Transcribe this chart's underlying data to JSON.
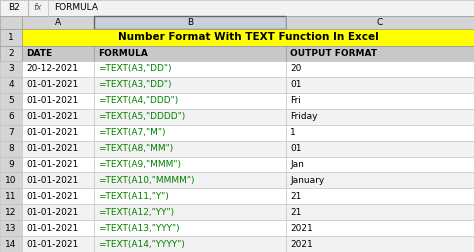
{
  "title": "Number Format With TEXT Function In Excel",
  "title_bg": "#FFFF00",
  "title_color": "#000000",
  "header_bg": "#C8C8C8",
  "header_color": "#000000",
  "col_headers": [
    "A",
    "B",
    "C"
  ],
  "col2_header": "DATE",
  "col3_header": "FORMULA",
  "col4_header": "OUTPUT FORMAT",
  "rows": [
    [
      "20-12-2021",
      "=TEXT(A3,\"DD\")",
      "20"
    ],
    [
      "01-01-2021",
      "=TEXT(A3,\"DD\")",
      "01"
    ],
    [
      "01-01-2021",
      "=TEXT(A4,\"DDD\")",
      "Fri"
    ],
    [
      "01-01-2021",
      "=TEXT(A5,\"DDDD\")",
      "Friday"
    ],
    [
      "01-01-2021",
      "=TEXT(A7,\"M\")",
      "1"
    ],
    [
      "01-01-2021",
      "=TEXT(A8,\"MM\")",
      "01"
    ],
    [
      "01-01-2021",
      "=TEXT(A9,\"MMM\")",
      "Jan"
    ],
    [
      "01-01-2021",
      "=TEXT(A10,\"MMMM\")",
      "January"
    ],
    [
      "01-01-2021",
      "=TEXT(A11,\"Y\")",
      "21"
    ],
    [
      "01-01-2021",
      "=TEXT(A12,\"YY\")",
      "21"
    ],
    [
      "01-01-2021",
      "=TEXT(A13,\"YYY\")",
      "2021"
    ],
    [
      "01-01-2021",
      "=TEXT(A14,\"YYYY\")",
      "2021"
    ]
  ],
  "formula_bar_text": "FORMULA",
  "cell_ref": "B2",
  "green_color": "#008000",
  "font_size": 6.5,
  "row_num_color": "#000000",
  "formula_bar_bg": "#FFFFFF",
  "col_letter_bg": "#D4D4D4",
  "col_letter_b_bg": "#C8D0DC",
  "row_num_bg": "#D4D4D4",
  "row_bg_white": "#FFFFFF",
  "row_bg_gray": "#F2F2F2",
  "border_dark": "#999999",
  "border_light": "#C8C8C8"
}
